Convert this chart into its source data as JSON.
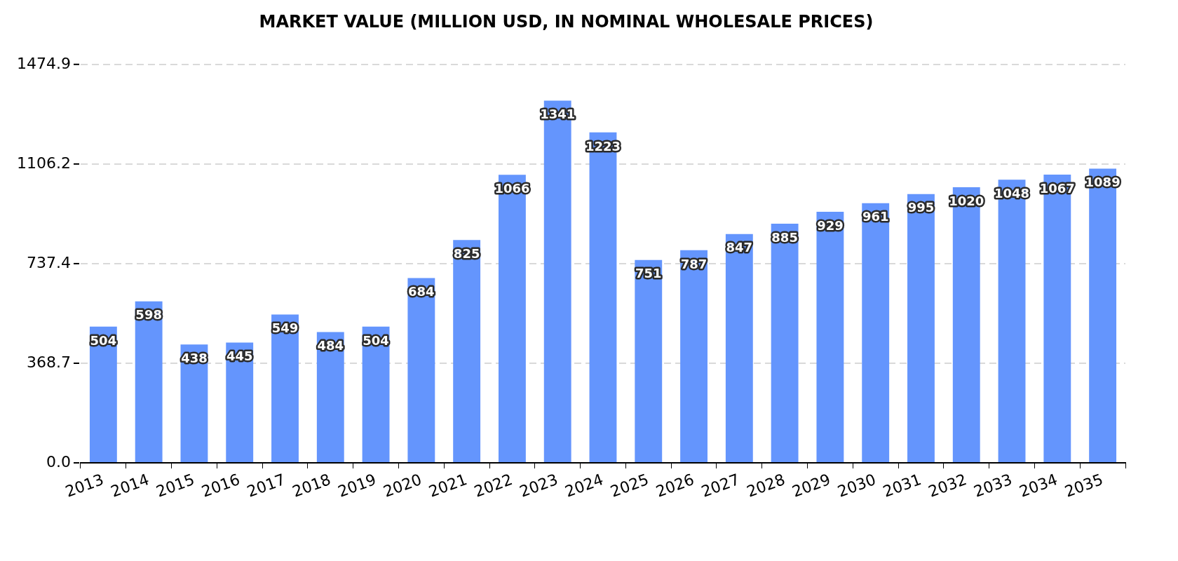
{
  "chart_data": {
    "type": "bar",
    "title": "MARKET VALUE (MILLION USD, IN NOMINAL WHOLESALE PRICES)",
    "categories": [
      "2013",
      "2014",
      "2015",
      "2016",
      "2017",
      "2018",
      "2019",
      "2020",
      "2021",
      "2022",
      "2023",
      "2024",
      "2025",
      "2026",
      "2027",
      "2028",
      "2029",
      "2030",
      "2031",
      "2032",
      "2033",
      "2034",
      "2035"
    ],
    "values": [
      504,
      598,
      438,
      445,
      549,
      484,
      504,
      684,
      825,
      1066,
      1341,
      1223,
      751,
      787,
      847,
      885,
      929,
      961,
      995,
      1020,
      1048,
      1067,
      1089
    ],
    "color": "#6495fd",
    "ylim": [
      0,
      1474.9
    ],
    "yticks": [
      {
        "value": 0,
        "label": "0.0"
      },
      368.7,
      737.4,
      1106.2,
      1474.9
    ],
    "grid": "y",
    "legend": false,
    "data_labels": true
  }
}
